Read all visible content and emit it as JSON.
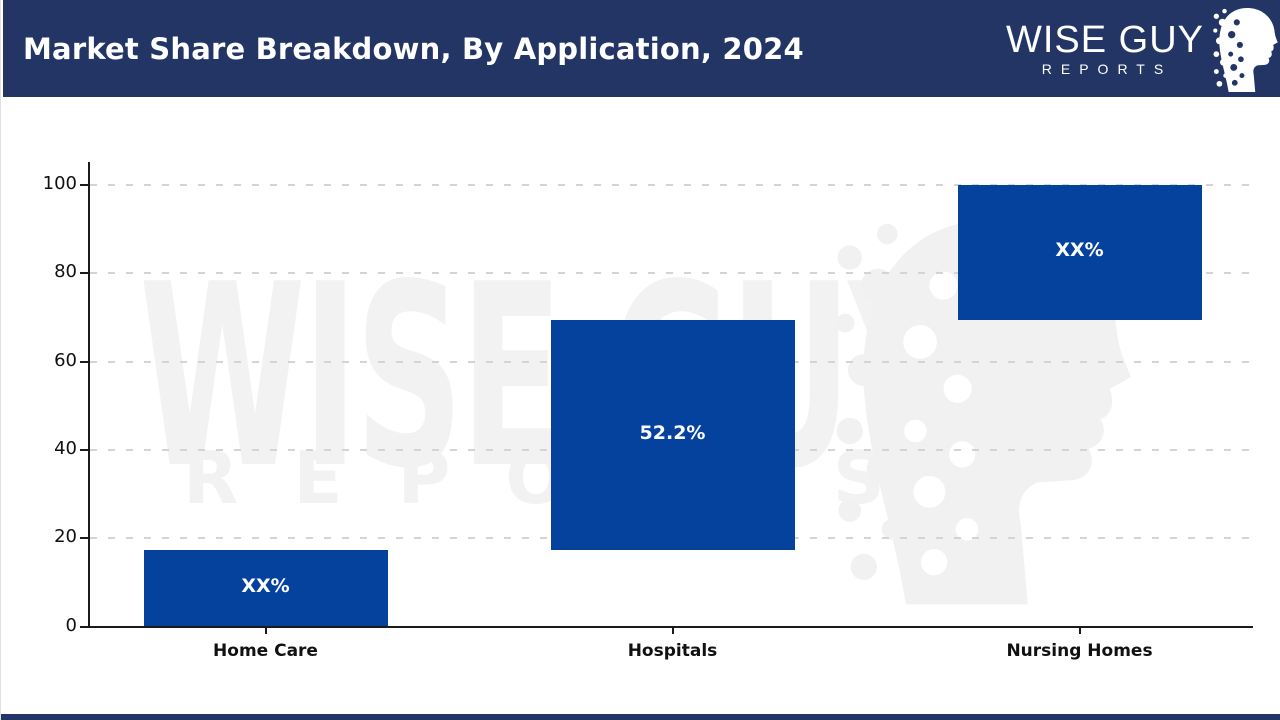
{
  "header": {
    "title": "Market Share Breakdown, By Application, 2024",
    "bg_color": "#223564",
    "logo": {
      "line1": "WISE GUY",
      "line2": "REPORTS"
    }
  },
  "watermark": {
    "line1": "WISE GUY",
    "line2": "REPORTS"
  },
  "footer": {
    "bg_color": "#223564"
  },
  "chart_data": {
    "type": "bar",
    "subtype": "waterfall",
    "title": "Market Share Breakdown, By Application, 2024",
    "categories": [
      "Home Care",
      "Hospitals",
      "Nursing Homes"
    ],
    "segments": [
      {
        "category": "Home Care",
        "start": 0,
        "end": 17.3,
        "value_label": "XX%"
      },
      {
        "category": "Hospitals",
        "start": 17.3,
        "end": 69.5,
        "value_label": "52.2%"
      },
      {
        "category": "Nursing Homes",
        "start": 69.5,
        "end": 100,
        "value_label": "XX%"
      }
    ],
    "y_ticks": [
      0,
      20,
      40,
      60,
      80,
      100
    ],
    "ylim": [
      0,
      105
    ],
    "xlabel": "",
    "ylabel": "",
    "grid": "horizontal-dashed",
    "legend": "none",
    "bar_color": "#05429e",
    "bar_label_color": "#ffffff",
    "axis_color": "#1a1a1a",
    "grid_color": "#d4d4d4"
  }
}
